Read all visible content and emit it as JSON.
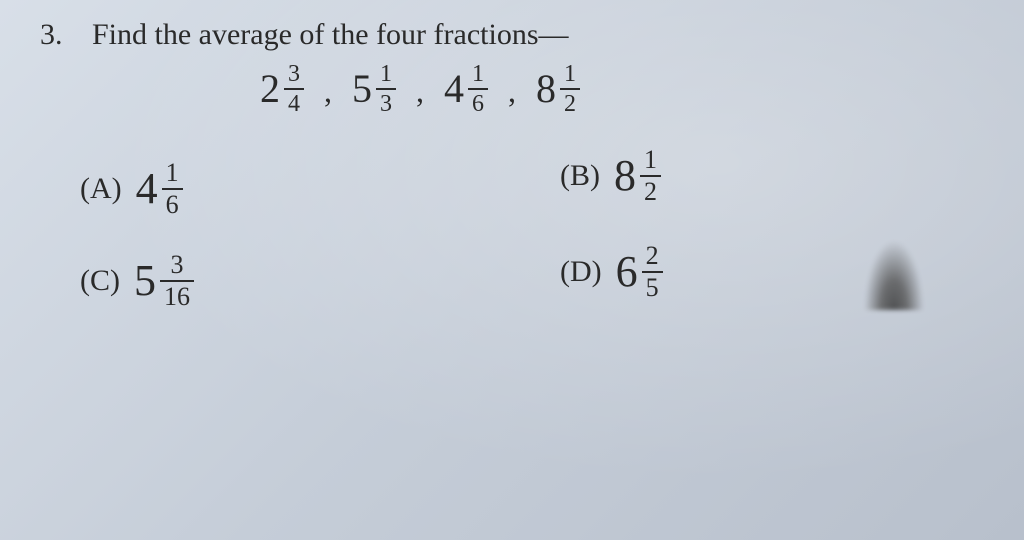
{
  "question": {
    "number": "3.",
    "text": "Find the average of the four fractions—",
    "fractions": [
      {
        "whole": "2",
        "num": "3",
        "den": "4"
      },
      {
        "whole": "5",
        "num": "1",
        "den": "3"
      },
      {
        "whole": "4",
        "num": "1",
        "den": "6"
      },
      {
        "whole": "8",
        "num": "1",
        "den": "2"
      }
    ]
  },
  "options": {
    "A": {
      "letter": "(A)",
      "whole": "4",
      "num": "1",
      "den": "6"
    },
    "B": {
      "letter": "(B)",
      "whole": "8",
      "num": "1",
      "den": "2"
    },
    "C": {
      "letter": "(C)",
      "whole": "5",
      "num": "3",
      "den": "16"
    },
    "D": {
      "letter": "(D)",
      "whole": "6",
      "num": "2",
      "den": "5"
    }
  },
  "separator": ","
}
